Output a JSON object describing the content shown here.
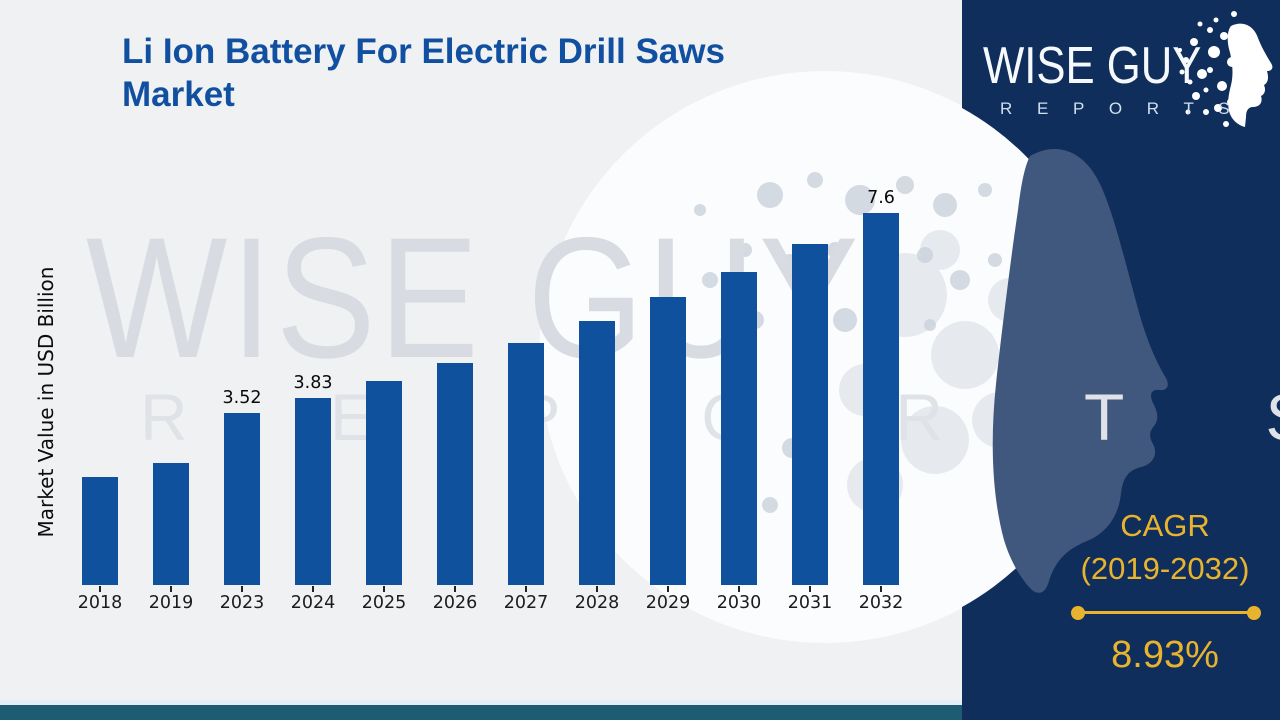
{
  "page": {
    "title": "Li Ion Battery For Electric Drill Saws Market"
  },
  "watermark": {
    "line1": "WISE GUY",
    "line2": "R E P O R T S"
  },
  "logo": {
    "line1": "WISE GUY",
    "line2": "R E P O R T S"
  },
  "panel": {
    "cagr_label": "CAGR",
    "cagr_range": "(2019-2032)",
    "cagr_value": "8.93%"
  },
  "colors": {
    "bg": "#f0f1f3",
    "navy": "#102e5c",
    "bar": "#10519e",
    "title": "#1150a0",
    "yellow": "#e9b42d",
    "teal": "#1e5c74",
    "face": "#41587e"
  },
  "chart_data": {
    "type": "bar",
    "title": "Li Ion Battery For Electric Drill Saws Market",
    "xlabel": "",
    "ylabel": "Market Value in USD Billion",
    "categories": [
      "2018",
      "2019",
      "2023",
      "2024",
      "2025",
      "2026",
      "2027",
      "2028",
      "2029",
      "2030",
      "2031",
      "2032"
    ],
    "values": [
      2.2,
      2.5,
      3.52,
      3.83,
      4.17,
      4.55,
      4.95,
      5.39,
      5.88,
      6.4,
      6.97,
      7.6
    ],
    "bar_labels": [
      "",
      "",
      "3.52",
      "3.83",
      "",
      "",
      "",
      "",
      "",
      "",
      "",
      "7.6"
    ],
    "bar_color": "#10519e",
    "ylim": [
      0,
      8.3
    ],
    "grid": false,
    "legend": "none",
    "cagr_percent": 8.93
  }
}
